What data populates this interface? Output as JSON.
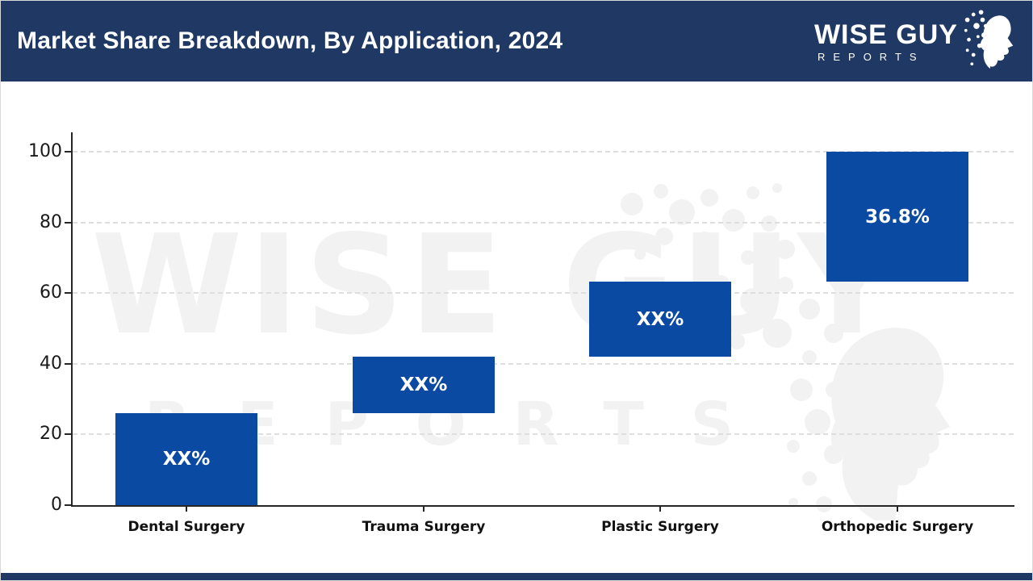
{
  "header": {
    "title": "Market Share Breakdown, By Application, 2024",
    "logo": {
      "line1": "WISE GUY",
      "line2": "REPORTS"
    }
  },
  "watermark": {
    "line1": "WISE GUY",
    "line2": "REPORTS"
  },
  "chart_data": {
    "type": "bar",
    "subtype": "waterfall-floating-bars",
    "title": "Market Share Breakdown, By Application, 2024",
    "categories": [
      "Dental Surgery",
      "Trauma Surgery",
      "Plastic Surgery",
      "Orthopedic Surgery"
    ],
    "bars": [
      {
        "category": "Dental Surgery",
        "start": 0,
        "end": 26,
        "value": 26,
        "label": "XX%"
      },
      {
        "category": "Trauma Surgery",
        "start": 26,
        "end": 42,
        "value": 16,
        "label": "XX%"
      },
      {
        "category": "Plastic Surgery",
        "start": 42,
        "end": 63.2,
        "value": 21.2,
        "label": "XX%"
      },
      {
        "category": "Orthopedic Surgery",
        "start": 63.2,
        "end": 100,
        "value": 36.8,
        "label": "36.8%"
      }
    ],
    "yticks": [
      0,
      20,
      40,
      60,
      80,
      100
    ],
    "ylim": [
      0,
      105.5
    ],
    "xlabel": "",
    "ylabel": "",
    "legend": null,
    "grid": "horizontal-dashed",
    "bar_color": "#0b4aa2"
  },
  "colors": {
    "header_navy": "#1f3864",
    "footer_navy": "#1f3864",
    "bar_blue": "#0b4aa2",
    "axis": "#262626",
    "gridline": "#dedede",
    "watermark_gray": "#f2f2f2"
  }
}
